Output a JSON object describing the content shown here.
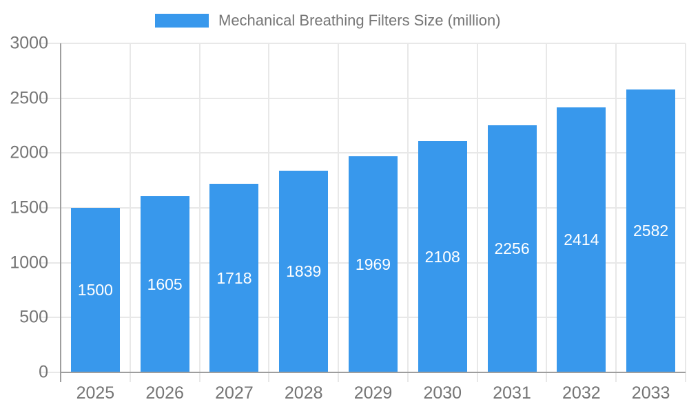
{
  "chart_data": {
    "type": "bar",
    "title": "",
    "categories": [
      "2025",
      "2026",
      "2027",
      "2028",
      "2029",
      "2030",
      "2031",
      "2032",
      "2033"
    ],
    "series": [
      {
        "name": "Mechanical Breathing Filters Size (million)",
        "values": [
          1500,
          1605,
          1718,
          1839,
          1969,
          2108,
          2256,
          2414,
          2582
        ]
      }
    ],
    "xlabel": "",
    "ylabel": "",
    "ylim": [
      0,
      3000
    ],
    "yticks": [
      0,
      500,
      1000,
      1500,
      2000,
      2500,
      3000
    ],
    "grid": true,
    "legend_position": "top",
    "bar_labels_inside": true
  },
  "colors": {
    "bar": "#3898EC",
    "axis_line": "#9E9E9E",
    "gridline": "#E8E8E8",
    "tick_text": "#757575",
    "legend_text": "#757575",
    "bar_label_text": "#FFFFFF",
    "background": "#FFFFFF"
  }
}
